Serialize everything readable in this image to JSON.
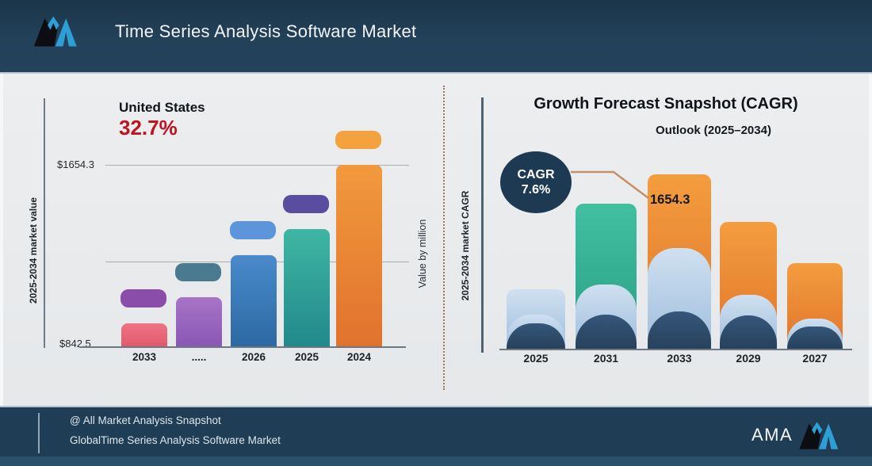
{
  "header": {
    "title": "Time Series Analysis Software Market"
  },
  "left_panel": {
    "region_label": "United States",
    "highlight_value": "32.7%",
    "y_axis_label": "2025-2034 market value",
    "tick_top": "$1654.3",
    "tick_bottom": "$842.5"
  },
  "divider_label": "Value by million",
  "right_panel": {
    "title": "Growth Forecast Snapshot (CAGR)",
    "subtitle": "Outlook (2025–2034)",
    "y_axis_label": "2025-2034 market CAGR",
    "badge_line1": "CAGR",
    "badge_line2": "7.6%",
    "annotation": "1654.3"
  },
  "footer": {
    "line1": "@ All Market Analysis Snapshot",
    "line2": "GlobalTime Series Analysis Software Market",
    "brand": "AMA"
  },
  "colors": {
    "header_navy": "#223f58",
    "footer_navy": "#1f3d55",
    "accent_red": "#c0131f",
    "badge_navy": "#1d3a52",
    "connector_tan": "#c69066",
    "logo_black": "#0d0e12",
    "logo_blue": "#2e9fd4"
  },
  "chart_data": [
    {
      "type": "bar",
      "title": "United States",
      "highlight": "32.7%",
      "ylabel": "2025-2034 market value",
      "categories": [
        "2033",
        ".....",
        "2026",
        "2025",
        "2024"
      ],
      "values": [
        945,
        1062,
        1250,
        1367,
        1654.3
      ],
      "ytick_labels": [
        "$842.5",
        "$1654.3"
      ],
      "yticks": [
        842.5,
        1654.3
      ],
      "ylim": [
        842.5,
        1700
      ],
      "grid": true,
      "bar_gradients": [
        [
          "#ee7486",
          "#e25a6c"
        ],
        [
          "#a874c8",
          "#8a57b4"
        ],
        [
          "#4a8acb",
          "#2c69a4"
        ],
        [
          "#3fb6a3",
          "#21898b"
        ],
        [
          "#f2993d",
          "#e0722d"
        ]
      ],
      "cap_colors": [
        "#8a4da9",
        "#4a7a90",
        "#5d95da",
        "#5a4da0",
        "#f3a23d"
      ]
    },
    {
      "type": "stacked-bar",
      "title": "Growth Forecast Snapshot (CAGR)",
      "subtitle": "Outlook (2025–2034)",
      "ylabel": "2025-2034 market CAGR",
      "cagr": "7.6%",
      "categories": [
        "2025",
        "2031",
        "2033",
        "2029",
        "2027"
      ],
      "bars": [
        {
          "label": "2025",
          "total_h": 75,
          "top_color": "lightblue",
          "blue_h": 43,
          "dome_h": 32,
          "annotation": ""
        },
        {
          "label": "2031",
          "total_h": 183,
          "top_color": "teal",
          "blue_h": 81,
          "dome_h": 43,
          "annotation": ""
        },
        {
          "label": "2033",
          "total_h": 220,
          "top_color": "orange",
          "blue_h": 127,
          "dome_h": 47,
          "annotation": "1654.3"
        },
        {
          "label": "2029",
          "total_h": 160,
          "top_color": "orange",
          "blue_h": 68,
          "dome_h": 42,
          "annotation": ""
        },
        {
          "label": "2027",
          "total_h": 108,
          "top_color": "orange",
          "blue_h": 38,
          "dome_h": 28,
          "annotation": ""
        }
      ],
      "segment_colors": {
        "lightblue": [
          "#cfe0f0",
          "#9fbedd"
        ],
        "teal": [
          "#41c0a0",
          "#2a9d85"
        ],
        "orange": [
          "#f39d3e",
          "#e2742c"
        ],
        "dome": [
          "#35577a",
          "#27415c"
        ]
      }
    }
  ]
}
